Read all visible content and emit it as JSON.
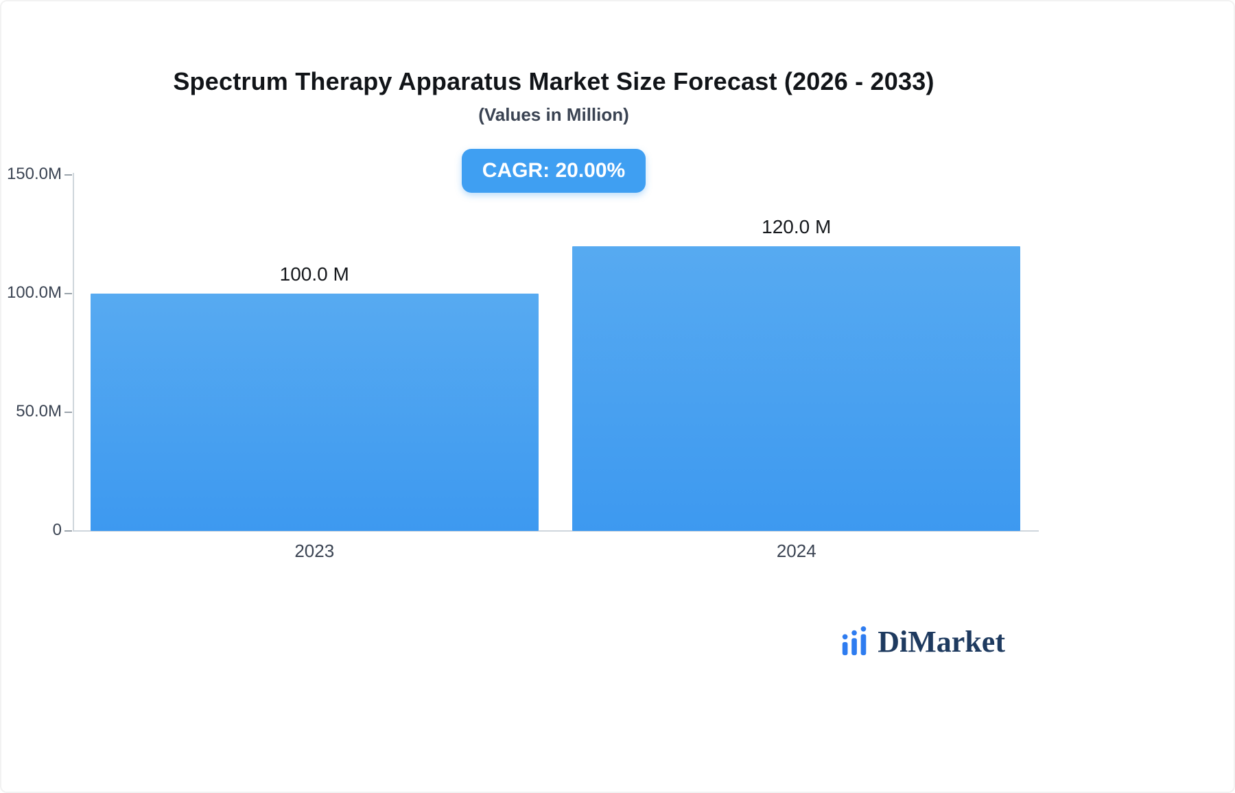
{
  "chart_data": {
    "type": "bar",
    "title": "Spectrum Therapy Apparatus Market Size Forecast (2026 - 2033)",
    "subtitle": "(Values in Million)",
    "cagr_label": "CAGR: 20.00%",
    "categories": [
      "2023",
      "2024"
    ],
    "values": [
      100.0,
      120.0
    ],
    "value_labels": [
      "100.0 M",
      "120.0 M"
    ],
    "xlabel": "",
    "ylabel": "",
    "ylim": [
      0,
      150
    ],
    "yticks": [
      {
        "value": 150,
        "label": "150.0M"
      },
      {
        "value": 100,
        "label": "100.0M"
      },
      {
        "value": 50,
        "label": "50.0M"
      },
      {
        "value": 0,
        "label": "0"
      }
    ],
    "grid": false,
    "legend_position": "none",
    "bar_color_top": "#57aaf1",
    "bar_color_bottom": "#3d99f0"
  },
  "badge": {
    "background": "#3f9ff2",
    "text_color": "#ffffff"
  },
  "branding": {
    "logo_text": "DiMarket",
    "icon": "bar-chart-icon",
    "text_color": "#1e3a5f",
    "icon_color": "#2e7cf0"
  }
}
